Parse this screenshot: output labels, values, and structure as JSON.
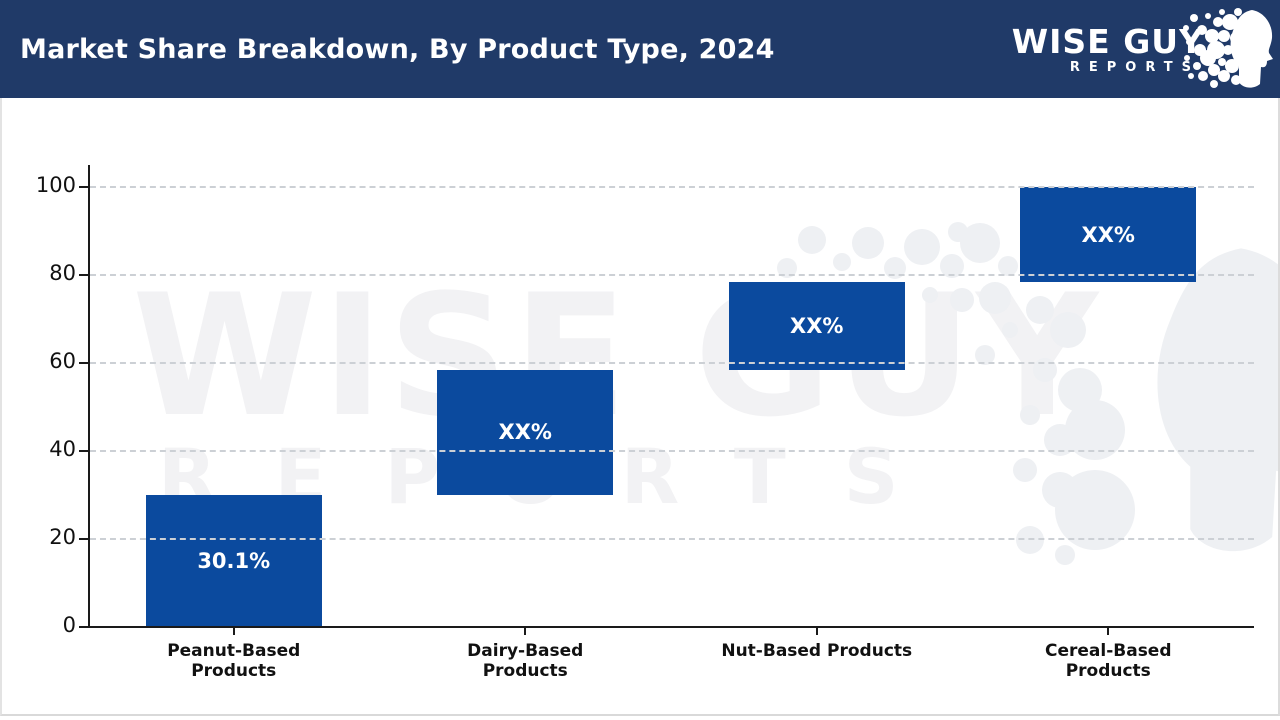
{
  "header": {
    "title": "Market Share Breakdown, By Product Type, 2024",
    "bg_color": "#203A68",
    "logo": {
      "brand": "WISE GUY",
      "sub": "REPORTS"
    }
  },
  "watermark": {
    "line1": "WISE GUY",
    "line2": "REPORTS"
  },
  "chart_data": {
    "type": "bar",
    "subtype": "waterfall",
    "title": "Market Share Breakdown, By Product Type, 2024",
    "xlabel": "",
    "ylabel": "",
    "ylim": [
      0,
      100
    ],
    "yticks": [
      0,
      20,
      40,
      60,
      80,
      100
    ],
    "grid": "horizontal-dashed",
    "legend": "none",
    "bar_color": "#0B4A9E",
    "categories": [
      "Peanut-Based Products",
      "Dairy-Based Products",
      "Nut-Based Products",
      "Cereal-Based Products"
    ],
    "category_lines": [
      [
        "Peanut-Based",
        "Products"
      ],
      [
        "Dairy-Based",
        "Products"
      ],
      [
        "Nut-Based Products"
      ],
      [
        "Cereal-Based",
        "Products"
      ]
    ],
    "segments": [
      {
        "category": "Peanut-Based Products",
        "start": 0,
        "end": 30.1,
        "label": "30.1%"
      },
      {
        "category": "Dairy-Based Products",
        "start": 30.1,
        "end": 58.4,
        "label": "XX%"
      },
      {
        "category": "Nut-Based Products",
        "start": 58.4,
        "end": 78.4,
        "label": "XX%"
      },
      {
        "category": "Cereal-Based Products",
        "start": 78.4,
        "end": 100,
        "label": "XX%"
      }
    ]
  }
}
